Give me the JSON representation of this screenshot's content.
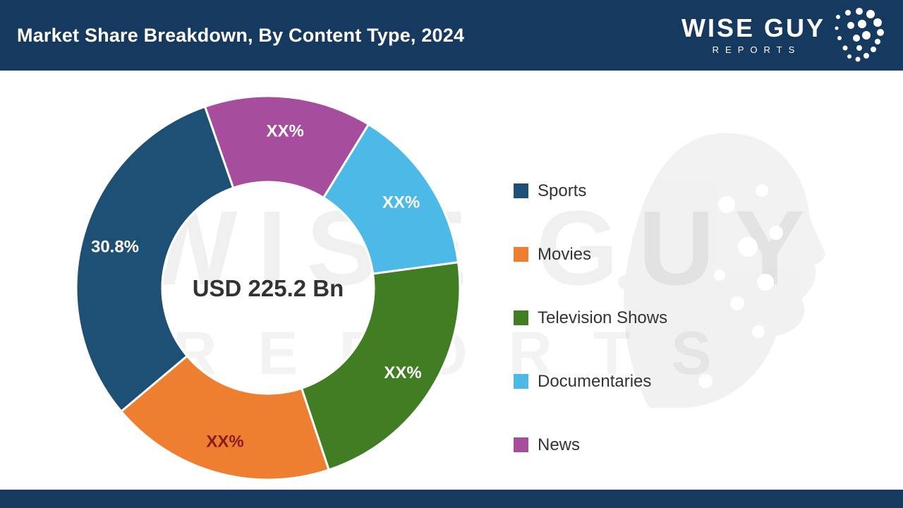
{
  "header": {
    "title": "Market Share Breakdown, By Content Type, 2024",
    "logo": {
      "line1": "WISE GUY",
      "line2": "REPORTS"
    }
  },
  "watermark": {
    "line1": "WISE GUY",
    "line2": "REPORTS"
  },
  "colors": {
    "bar_bg": "#16395f",
    "background": "#ffffff",
    "center_text": "#333333"
  },
  "chart_data": {
    "type": "pie",
    "subtype": "donut",
    "title": "Market Share Breakdown, By Content Type, 2024",
    "center_label": "USD 225.2 Bn",
    "legend_position": "right",
    "start_angle_deg": 340.8,
    "direction": "counterclockwise",
    "segments": [
      {
        "name": "Sports",
        "value": 30.8,
        "label": "30.8%",
        "color": "#1e4f74",
        "label_color": "#ffffff"
      },
      {
        "name": "Movies",
        "value": 19.0,
        "label": "XX%",
        "color": "#ee7e30",
        "label_color": "#8b1a1a"
      },
      {
        "name": "Television Shows",
        "value": 22.0,
        "label": "XX%",
        "color": "#417d22",
        "label_color": "#ffffff"
      },
      {
        "name": "Documentaries",
        "value": 14.1,
        "label": "XX%",
        "color": "#4cb9e7",
        "label_color": "#ffffff"
      },
      {
        "name": "News",
        "value": 14.1,
        "label": "XX%",
        "color": "#a64d9e",
        "label_color": "#ffffff"
      }
    ]
  }
}
